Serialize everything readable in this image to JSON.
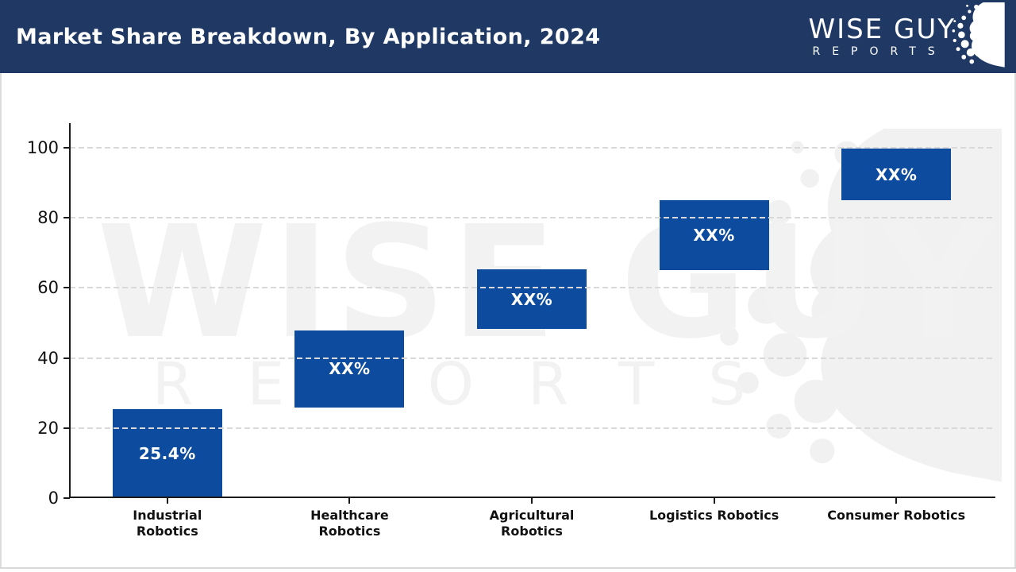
{
  "header": {
    "title": "Market Share Breakdown, By Application, 2024",
    "bg_color": "#1f3864",
    "text_color": "#ffffff",
    "logo": {
      "name": "WISE GUY",
      "sub": "REPORTS"
    }
  },
  "watermark": {
    "name": "WISE GUY",
    "sub": "REPORTS"
  },
  "chart_data": {
    "type": "bar",
    "subtype": "floating-waterfall",
    "title": "Market Share Breakdown, By Application, 2024",
    "categories": [
      "Industrial\nRobotics",
      "Healthcare\nRobotics",
      "Agricultural\nRobotics",
      "Logistics Robotics",
      "Consumer Robotics"
    ],
    "segments": [
      {
        "category": "Industrial Robotics",
        "start": 0,
        "end": 25.4,
        "label": "25.4%"
      },
      {
        "category": "Healthcare Robotics",
        "start": 25.9,
        "end": 47.9,
        "label": "XX%"
      },
      {
        "category": "Agricultural Robotics",
        "start": 48.3,
        "end": 65.3,
        "label": "XX%"
      },
      {
        "category": "Logistics Robotics",
        "start": 65.1,
        "end": 85.0,
        "label": "XX%"
      },
      {
        "category": "Consumer Robotics",
        "start": 85.0,
        "end": 99.8,
        "label": "XX%"
      }
    ],
    "ylim": [
      0,
      100
    ],
    "yticks": [
      0,
      20,
      40,
      60,
      80,
      100
    ],
    "xlabel": "",
    "ylabel": "",
    "grid": {
      "horizontal": true,
      "style": "dashed",
      "color": "#d9d9d9",
      "drawn_above_bars": true
    },
    "legend": "none",
    "bar_color": "#0c4b9d",
    "bar_label_color": "#ffffff",
    "axis_color": "#1a1a1a",
    "tick_label_color": "#111111"
  }
}
